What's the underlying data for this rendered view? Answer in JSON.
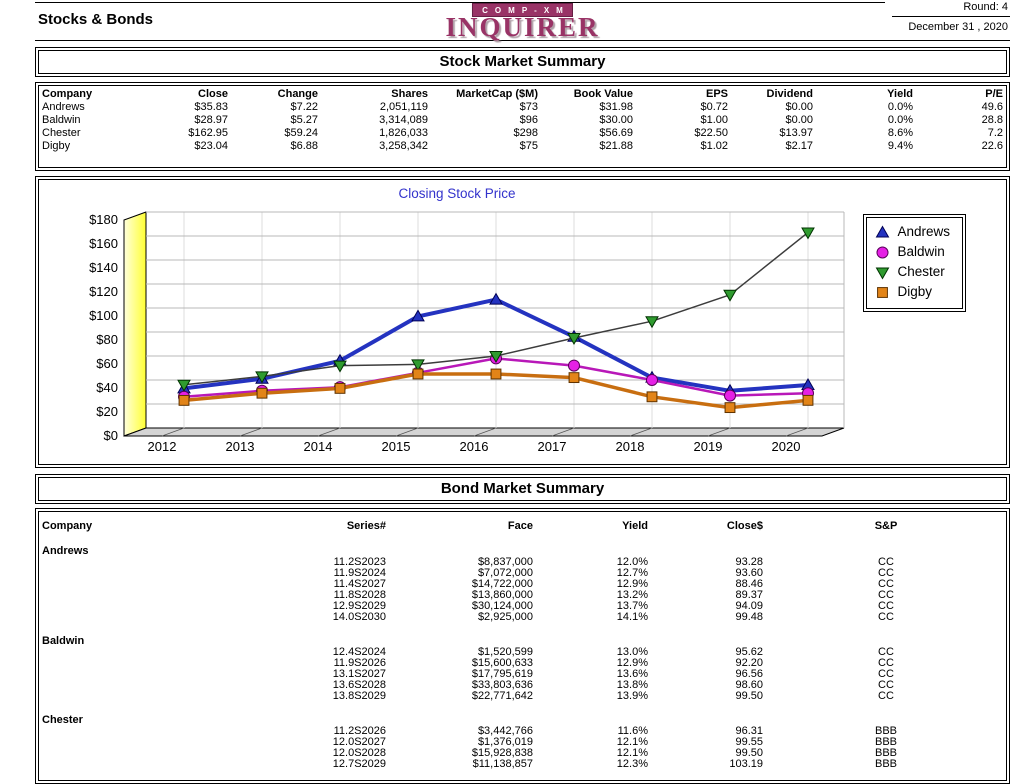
{
  "header": {
    "title": "Stocks & Bonds",
    "round_label": "Round: 4",
    "date": "December 31 , 2020",
    "logo_top": "COMP-XM",
    "logo_main": "INQUIRER",
    "logo_color": "#993366"
  },
  "stock_summary": {
    "title": "Stock Market Summary",
    "columns": [
      "Company",
      "Close",
      "Change",
      "Shares",
      "MarketCap ($M)",
      "Book Value",
      "EPS",
      "Dividend",
      "Yield",
      "P/E"
    ],
    "rows": [
      [
        "Andrews",
        "$35.83",
        "$7.22",
        "2,051,119",
        "$73",
        "$31.98",
        "$0.72",
        "$0.00",
        "0.0%",
        "49.6"
      ],
      [
        "Baldwin",
        "$28.97",
        "$5.27",
        "3,314,089",
        "$96",
        "$30.00",
        "$1.00",
        "$0.00",
        "0.0%",
        "28.8"
      ],
      [
        "Chester",
        "$162.95",
        "$59.24",
        "1,826,033",
        "$298",
        "$56.69",
        "$22.50",
        "$13.97",
        "8.6%",
        "7.2"
      ],
      [
        "Digby",
        "$23.04",
        "$6.88",
        "3,258,342",
        "$75",
        "$21.88",
        "$1.02",
        "$2.17",
        "9.4%",
        "22.6"
      ]
    ]
  },
  "chart_data": {
    "type": "line",
    "title": "Closing Stock Price",
    "title_color": "#3333cc",
    "xlabel": "",
    "ylabel": "",
    "x": [
      "2012",
      "2013",
      "2014",
      "2015",
      "2016",
      "2017",
      "2018",
      "2019",
      "2020"
    ],
    "ylim": [
      0,
      180
    ],
    "ytick_step": 20,
    "ytick_labels": [
      "$0",
      "$20",
      "$40",
      "$60",
      "$80",
      "$100",
      "$120",
      "$140",
      "$160",
      "$180"
    ],
    "grid": true,
    "legend_position": "top-right",
    "series": [
      {
        "name": "Andrews",
        "marker": "triangle-up",
        "color": "#2433c0",
        "edge": "#000055",
        "line_color": "#2433c0",
        "line_width": 4,
        "values": [
          33,
          41,
          56,
          93,
          107,
          76,
          42,
          31,
          35.83
        ]
      },
      {
        "name": "Baldwin",
        "marker": "circle",
        "color": "#e520e5",
        "edge": "#5a005a",
        "line_color": "#b818b8",
        "line_width": 2.5,
        "values": [
          26,
          31,
          34,
          46,
          58,
          52,
          40,
          27,
          28.97
        ]
      },
      {
        "name": "Chester",
        "marker": "triangle-down",
        "color": "#2f9b2f",
        "edge": "#003300",
        "line_color": "#3c3c3c",
        "line_width": 1.5,
        "values": [
          36,
          43,
          52,
          53,
          60,
          75,
          89,
          111,
          162.95
        ]
      },
      {
        "name": "Digby",
        "marker": "square",
        "color": "#e28418",
        "edge": "#5f3300",
        "line_color": "#c86e10",
        "line_width": 3.5,
        "values": [
          23,
          29,
          33,
          45,
          45,
          42,
          26,
          17,
          23.04
        ]
      }
    ]
  },
  "bond_summary": {
    "title": "Bond Market Summary",
    "columns": [
      "Company",
      "Series#",
      "Face",
      "Yield",
      "Close$",
      "S&P"
    ],
    "companies": [
      {
        "name": "Andrews",
        "bonds": [
          [
            "11.2S2023",
            "$8,837,000",
            "12.0%",
            "93.28",
            "CC"
          ],
          [
            "11.9S2024",
            "$7,072,000",
            "12.7%",
            "93.60",
            "CC"
          ],
          [
            "11.4S2027",
            "$14,722,000",
            "12.9%",
            "88.46",
            "CC"
          ],
          [
            "11.8S2028",
            "$13,860,000",
            "13.2%",
            "89.37",
            "CC"
          ],
          [
            "12.9S2029",
            "$30,124,000",
            "13.7%",
            "94.09",
            "CC"
          ],
          [
            "14.0S2030",
            "$2,925,000",
            "14.1%",
            "99.48",
            "CC"
          ]
        ]
      },
      {
        "name": "Baldwin",
        "bonds": [
          [
            "12.4S2024",
            "$1,520,599",
            "13.0%",
            "95.62",
            "CC"
          ],
          [
            "11.9S2026",
            "$15,600,633",
            "12.9%",
            "92.20",
            "CC"
          ],
          [
            "13.1S2027",
            "$17,795,619",
            "13.6%",
            "96.56",
            "CC"
          ],
          [
            "13.6S2028",
            "$33,803,636",
            "13.8%",
            "98.60",
            "CC"
          ],
          [
            "13.8S2029",
            "$22,771,642",
            "13.9%",
            "99.50",
            "CC"
          ]
        ]
      },
      {
        "name": "Chester",
        "bonds": [
          [
            "11.2S2026",
            "$3,442,766",
            "11.6%",
            "96.31",
            "BBB"
          ],
          [
            "12.0S2027",
            "$1,376,019",
            "12.1%",
            "99.55",
            "BBB"
          ],
          [
            "12.0S2028",
            "$15,928,838",
            "12.1%",
            "99.50",
            "BBB"
          ],
          [
            "12.7S2029",
            "$11,138,857",
            "12.3%",
            "103.19",
            "BBB"
          ]
        ]
      }
    ]
  }
}
